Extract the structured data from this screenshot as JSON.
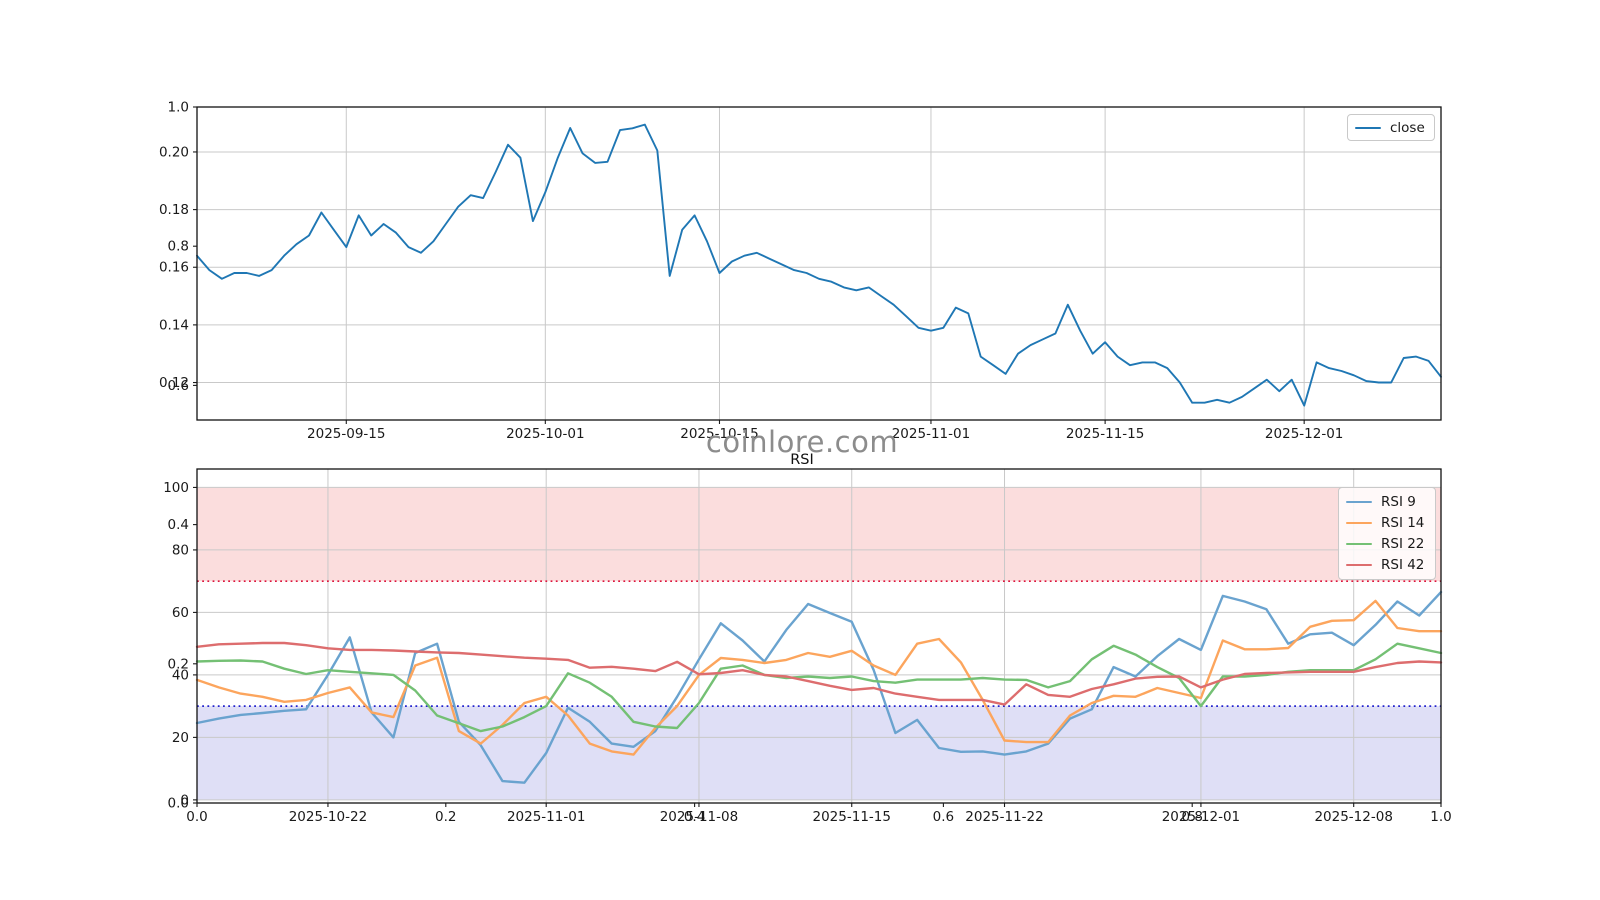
{
  "watermark": "coinlore.com",
  "overlay_axis": {
    "x_tick_labels": [
      "0.0",
      "0.2",
      "0.4",
      "0.6",
      "0.8",
      "1.0"
    ],
    "y_tick_labels": [
      "1.0",
      "0.8",
      "0.6",
      "0.4",
      "0.2",
      "0.0"
    ]
  },
  "chart_data": [
    {
      "type": "line",
      "name": "price",
      "title": "",
      "grid": true,
      "legend": {
        "position": "upper right",
        "entries": [
          "close"
        ]
      },
      "ylim": [
        0.107,
        0.2156
      ],
      "y_ticks": [
        0.2,
        0.18,
        0.16,
        0.14,
        0.12
      ],
      "y_tick_labels": [
        "0.20",
        "0.18",
        "0.16",
        "0.14",
        "0.12"
      ],
      "x_tick_labels": [
        "2025-09-15",
        "2025-10-01",
        "2025-10-15",
        "2025-11-01",
        "2025-11-15",
        "2025-12-01"
      ],
      "dates": [
        "2025-09-03",
        "2025-09-04",
        "2025-09-05",
        "2025-09-06",
        "2025-09-07",
        "2025-09-08",
        "2025-09-09",
        "2025-09-10",
        "2025-09-11",
        "2025-09-12",
        "2025-09-13",
        "2025-09-14",
        "2025-09-15",
        "2025-09-16",
        "2025-09-17",
        "2025-09-18",
        "2025-09-19",
        "2025-09-20",
        "2025-09-21",
        "2025-09-22",
        "2025-09-23",
        "2025-09-24",
        "2025-09-25",
        "2025-09-26",
        "2025-09-27",
        "2025-09-28",
        "2025-09-29",
        "2025-09-30",
        "2025-10-01",
        "2025-10-02",
        "2025-10-03",
        "2025-10-04",
        "2025-10-05",
        "2025-10-06",
        "2025-10-07",
        "2025-10-08",
        "2025-10-09",
        "2025-10-10",
        "2025-10-11",
        "2025-10-12",
        "2025-10-13",
        "2025-10-14",
        "2025-10-15",
        "2025-10-16",
        "2025-10-17",
        "2025-10-18",
        "2025-10-19",
        "2025-10-20",
        "2025-10-21",
        "2025-10-22",
        "2025-10-23",
        "2025-10-24",
        "2025-10-25",
        "2025-10-26",
        "2025-10-27",
        "2025-10-28",
        "2025-10-29",
        "2025-10-30",
        "2025-10-31",
        "2025-11-01",
        "2025-11-02",
        "2025-11-03",
        "2025-11-04",
        "2025-11-05",
        "2025-11-06",
        "2025-11-07",
        "2025-11-08",
        "2025-11-09",
        "2025-11-10",
        "2025-11-11",
        "2025-11-12",
        "2025-11-13",
        "2025-11-14",
        "2025-11-15",
        "2025-11-16",
        "2025-11-17",
        "2025-11-18",
        "2025-11-19",
        "2025-11-20",
        "2025-11-21",
        "2025-11-22",
        "2025-11-23",
        "2025-11-24",
        "2025-11-25",
        "2025-11-26",
        "2025-11-27",
        "2025-11-28",
        "2025-11-29",
        "2025-11-30",
        "2025-12-01",
        "2025-12-02",
        "2025-12-03",
        "2025-12-04",
        "2025-12-05",
        "2025-12-06",
        "2025-12-07",
        "2025-12-08",
        "2025-12-09",
        "2025-12-10",
        "2025-12-11",
        "2025-12-12"
      ],
      "series": [
        {
          "name": "close",
          "color": "#1f77b4",
          "values": [
            0.164,
            0.159,
            0.156,
            0.158,
            0.158,
            0.157,
            0.159,
            0.164,
            0.168,
            0.171,
            0.179,
            0.173,
            0.167,
            0.178,
            0.171,
            0.175,
            0.172,
            0.167,
            0.165,
            0.169,
            0.175,
            0.181,
            0.185,
            0.184,
            0.193,
            0.2025,
            0.198,
            0.176,
            0.186,
            0.198,
            0.2083,
            0.1995,
            0.1962,
            0.1966,
            0.2076,
            0.2082,
            0.2095,
            0.2005,
            0.157,
            0.173,
            0.178,
            0.169,
            0.158,
            0.162,
            0.164,
            0.165,
            0.163,
            0.161,
            0.159,
            0.158,
            0.156,
            0.155,
            0.153,
            0.152,
            0.153,
            0.15,
            0.147,
            0.143,
            0.139,
            0.138,
            0.139,
            0.146,
            0.144,
            0.129,
            0.126,
            0.123,
            0.13,
            0.133,
            0.135,
            0.137,
            0.147,
            0.138,
            0.13,
            0.134,
            0.129,
            0.126,
            0.127,
            0.127,
            0.125,
            0.12,
            0.113,
            0.113,
            0.114,
            0.113,
            0.115,
            0.118,
            0.121,
            0.117,
            0.121,
            0.112,
            0.127,
            0.125,
            0.124,
            0.1225,
            0.1205,
            0.12,
            0.12,
            0.1285,
            0.129,
            0.1275,
            0.122
          ]
        }
      ]
    },
    {
      "type": "line",
      "name": "rsi",
      "title": "RSI",
      "grid": true,
      "legend": {
        "position": "upper right",
        "entries": [
          "RSI 9",
          "RSI 14",
          "RSI 22",
          "RSI 42"
        ]
      },
      "ylim": [
        -1,
        105.9
      ],
      "y_ticks": [
        100,
        80,
        60,
        40,
        20,
        0
      ],
      "y_tick_labels": [
        "100",
        "80",
        "60",
        "40",
        "20",
        "0"
      ],
      "x_tick_labels": [
        "2025-10-22",
        "2025-11-01",
        "2025-11-08",
        "2025-11-15",
        "2025-11-22",
        "2025-12-01",
        "2025-12-08"
      ],
      "overbought_level": 70,
      "oversold_level": 30,
      "bands": [
        {
          "name": "overbought-band",
          "from": 70,
          "to": 100,
          "color": "#fbdddd"
        },
        {
          "name": "oversold-band",
          "from": 0,
          "to": 30,
          "color": "#dfdff6"
        }
      ],
      "hlines": [
        {
          "name": "overbought-line",
          "y": 70,
          "color": "#dc143c",
          "style": "dotted"
        },
        {
          "name": "oversold-line",
          "y": 30,
          "color": "#2323cd",
          "style": "dotted"
        }
      ],
      "dates": [
        "2025-10-16",
        "2025-10-17",
        "2025-10-18",
        "2025-10-19",
        "2025-10-20",
        "2025-10-21",
        "2025-10-22",
        "2025-10-23",
        "2025-10-24",
        "2025-10-25",
        "2025-10-26",
        "2025-10-27",
        "2025-10-28",
        "2025-10-29",
        "2025-10-30",
        "2025-10-31",
        "2025-11-01",
        "2025-11-02",
        "2025-11-03",
        "2025-11-04",
        "2025-11-05",
        "2025-11-06",
        "2025-11-07",
        "2025-11-08",
        "2025-11-09",
        "2025-11-10",
        "2025-11-11",
        "2025-11-12",
        "2025-11-13",
        "2025-11-14",
        "2025-11-15",
        "2025-11-16",
        "2025-11-17",
        "2025-11-18",
        "2025-11-19",
        "2025-11-20",
        "2025-11-21",
        "2025-11-22",
        "2025-11-23",
        "2025-11-24",
        "2025-11-25",
        "2025-11-26",
        "2025-11-27",
        "2025-11-28",
        "2025-11-29",
        "2025-11-30",
        "2025-12-01",
        "2025-12-02",
        "2025-12-03",
        "2025-12-04",
        "2025-12-05",
        "2025-12-06",
        "2025-12-07",
        "2025-12-08",
        "2025-12-09",
        "2025-12-10",
        "2025-12-11",
        "2025-12-12"
      ],
      "series": [
        {
          "name": "RSI 9",
          "color": "#6aa3cf",
          "values": [
            24.6,
            26,
            27.2,
            27.8,
            28.5,
            29,
            40,
            52,
            28,
            20,
            47,
            50,
            25,
            17.5,
            6,
            5.5,
            15,
            29.5,
            25,
            18,
            17,
            22,
            33,
            45,
            56.5,
            51,
            44.3,
            54.4,
            62.7,
            59.8,
            57,
            41.6,
            21.4,
            25.6,
            16.6,
            15.4,
            15.5,
            14.5,
            15.5,
            18,
            26,
            29,
            42.5,
            39.5,
            46,
            51.5,
            48,
            65.3,
            63.5,
            61,
            50,
            53,
            53.5,
            49.5,
            56,
            63.5,
            59,
            66.5
          ]
        },
        {
          "name": "RSI 14",
          "color": "#fca55d",
          "values": [
            38.4,
            36,
            34,
            33,
            31.4,
            32,
            34.2,
            36,
            28,
            26.5,
            43,
            45.5,
            22,
            18,
            24,
            31,
            33,
            27,
            18,
            15.5,
            14.5,
            23,
            30,
            40,
            45.4,
            44.8,
            43.8,
            44.8,
            47,
            45.8,
            47.7,
            43,
            40,
            50,
            51.5,
            44,
            32,
            19,
            18.5,
            18.5,
            27,
            31,
            33.3,
            33,
            35.8,
            34.2,
            32.6,
            51,
            48.2,
            48.2,
            48.6,
            55.4,
            57.3,
            57.5,
            63.7,
            55,
            54,
            54
          ]
        },
        {
          "name": "RSI 22",
          "color": "#74c074",
          "values": [
            44.3,
            44.5,
            44.6,
            44.3,
            42,
            40.3,
            41.5,
            41,
            40.5,
            40,
            35,
            27,
            24.5,
            22,
            23.5,
            26.5,
            30,
            40.5,
            37.5,
            33,
            25,
            23.5,
            23,
            31,
            42,
            43,
            40,
            39,
            39.5,
            39,
            39.5,
            38,
            37.5,
            38.5,
            38.5,
            38.5,
            39,
            38.5,
            38.4,
            36,
            38,
            45,
            49.3,
            46.5,
            42.5,
            39,
            30,
            39.5,
            39.5,
            40,
            41,
            41.5,
            41.5,
            41.5,
            45,
            50,
            48.5,
            47
          ]
        },
        {
          "name": "RSI 42",
          "color": "#dd6d6e",
          "values": [
            49,
            49.8,
            50,
            50.2,
            50.2,
            49.5,
            48.5,
            48,
            48,
            47.8,
            47.5,
            47.2,
            47,
            46.5,
            46,
            45.5,
            45.2,
            44.8,
            42.3,
            42.6,
            42,
            41.2,
            44.2,
            40.2,
            40.6,
            41.5,
            40,
            39.5,
            38,
            36.5,
            35.2,
            35.8,
            34,
            33,
            32,
            32,
            32,
            30.5,
            37,
            33.6,
            33,
            35.5,
            37,
            38.8,
            39.4,
            39.5,
            36,
            38.5,
            40.3,
            40.6,
            40.8,
            41,
            41,
            41,
            42.5,
            43.8,
            44.3,
            44
          ]
        }
      ]
    }
  ]
}
